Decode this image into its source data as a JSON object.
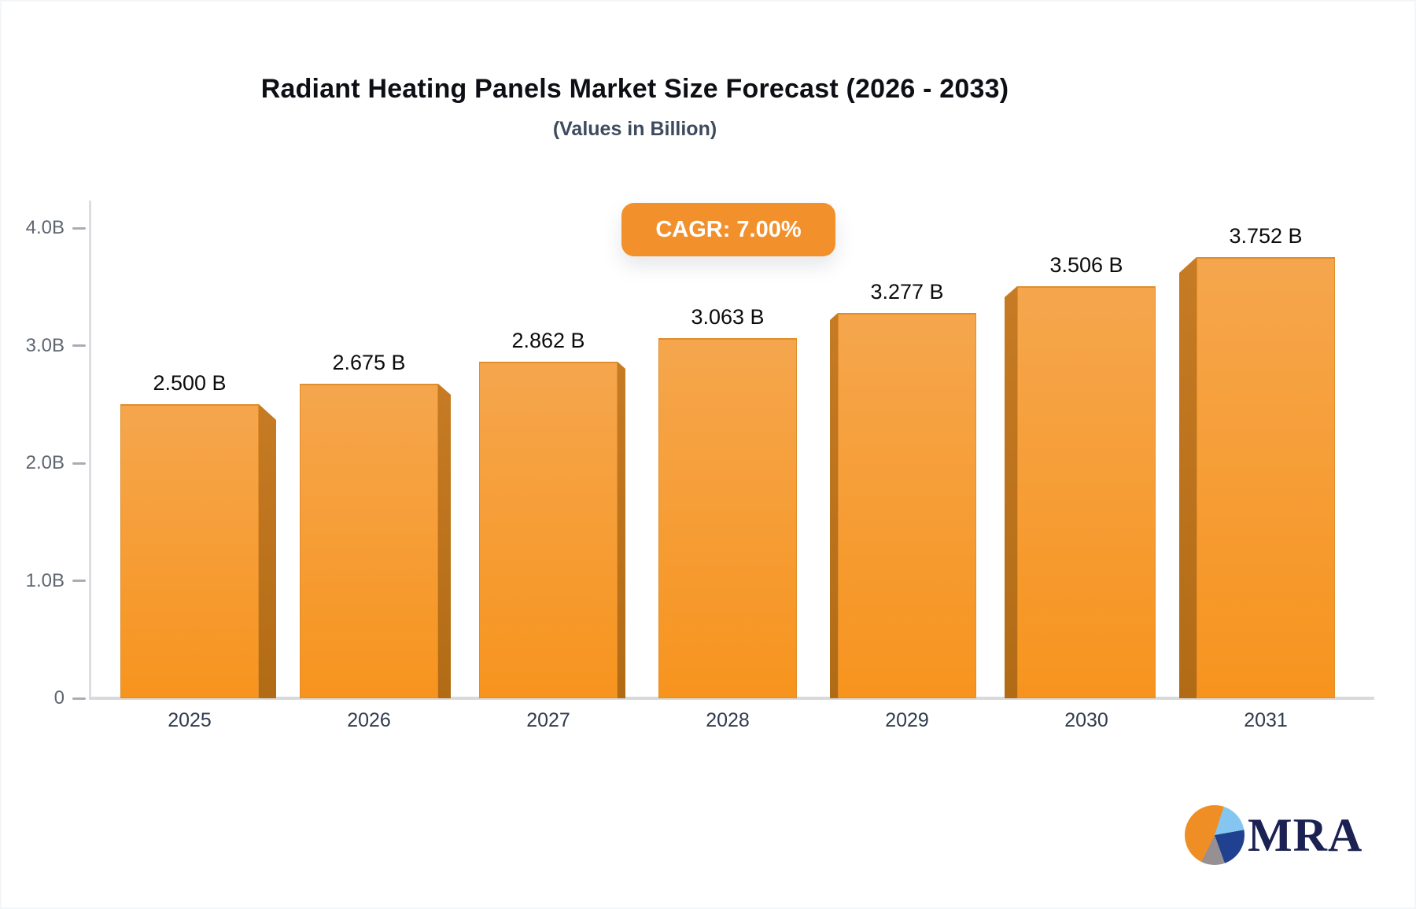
{
  "page": {
    "background": "#ffffff"
  },
  "header": {
    "title": "Radiant Heating Panels Market Size Forecast (2026 - 2033)",
    "subtitle": "(Values in Billion)"
  },
  "badge": {
    "label": "CAGR: 7.00%",
    "color": "#f2912c",
    "text_color": "#ffffff"
  },
  "chart_data": {
    "type": "bar",
    "title": "Radiant Heating Panels Market Size Forecast (2026 - 2033)",
    "subtitle": "(Values in Billion)",
    "cagr_annotation": "CAGR: 7.00%",
    "categories": [
      "2025",
      "2026",
      "2027",
      "2028",
      "2029",
      "2030",
      "2031"
    ],
    "values": [
      2.5,
      2.675,
      2.862,
      3.063,
      3.277,
      3.506,
      3.752
    ],
    "value_labels": [
      "2.500 B",
      "2.675 B",
      "2.862 B",
      "3.063 B",
      "3.277 B",
      "3.506 B",
      "3.752 B"
    ],
    "ylim": [
      0,
      4
    ],
    "yticks": [
      {
        "label": "0",
        "value": 0
      },
      {
        "label": "1.0B",
        "value": 1
      },
      {
        "label": "2.0B",
        "value": 2
      },
      {
        "label": "3.0B",
        "value": 3
      },
      {
        "label": "4.0B",
        "value": 4
      }
    ],
    "grid": false,
    "legend": false,
    "style": "3d-perspective-bars",
    "bar_color_top": "#f5a64d",
    "bar_color_bottom": "#f7941e",
    "bar_side_color_top": "#c67b24",
    "bar_side_color_bottom": "#b26b15"
  },
  "logo": {
    "text": "MRA",
    "pie_colors": [
      "#ef8e24",
      "#85c6f0",
      "#20418f",
      "#979093"
    ]
  }
}
